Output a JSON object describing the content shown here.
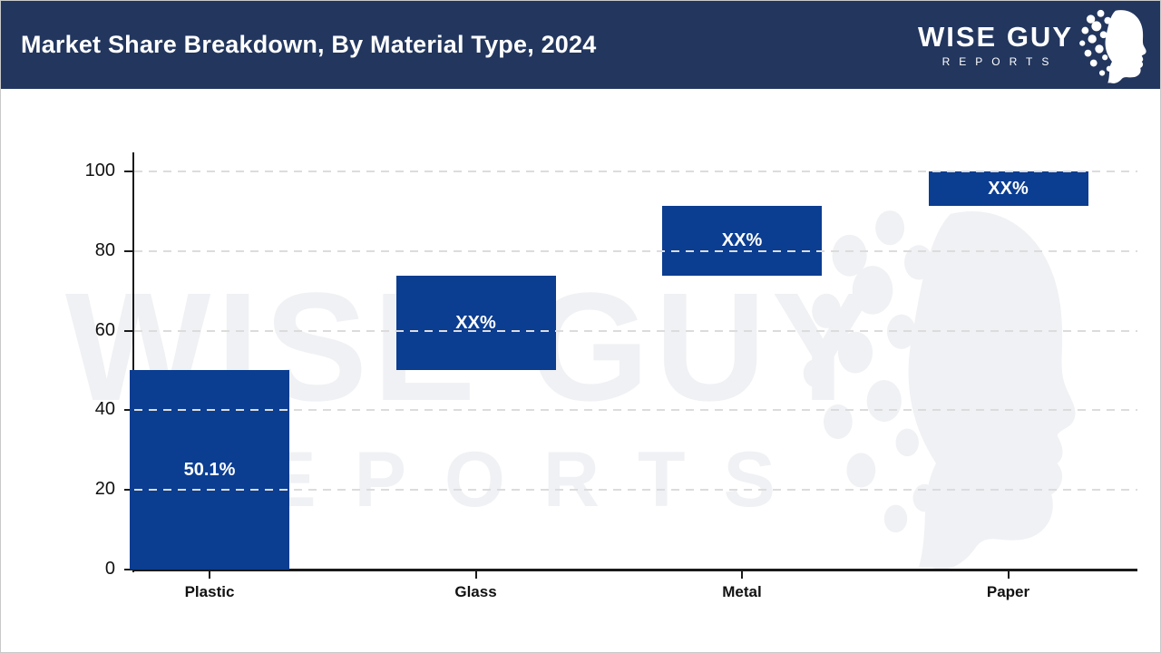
{
  "header": {
    "title": "Market Share Breakdown, By Material Type, 2024",
    "logo": {
      "line1": "WISE GUY",
      "line2": "REPORTS"
    }
  },
  "watermark": {
    "line1": "WISE GUY",
    "line2": "REPORTS"
  },
  "chart_data": {
    "type": "bar",
    "subtype": "waterfall",
    "title": "Market Share Breakdown, By Material Type, 2024",
    "categories": [
      "Plastic",
      "Glass",
      "Metal",
      "Paper"
    ],
    "segments": [
      {
        "category": "Plastic",
        "start": 0,
        "end": 50.1,
        "label": "50.1%"
      },
      {
        "category": "Glass",
        "start": 50.1,
        "end": 73.8,
        "label": "XX%"
      },
      {
        "category": "Metal",
        "start": 73.9,
        "end": 91.3,
        "label": "XX%"
      },
      {
        "category": "Paper",
        "start": 91.3,
        "end": 100,
        "label": "XX%"
      }
    ],
    "yticks": [
      0,
      20,
      40,
      60,
      80,
      100
    ],
    "ylim": [
      0,
      105
    ],
    "xlabel": "",
    "ylabel": "",
    "legend": "none",
    "grid": "horizontal-dashed",
    "bar_color": "#0B3D91",
    "bar_label_color": "#FFFFFF"
  },
  "colors": {
    "header_bg": "#22365E",
    "bar": "#0B3D91",
    "grid": "#DCDCDC",
    "axis": "#1A1A1A",
    "watermark": "#F0F1F4"
  }
}
